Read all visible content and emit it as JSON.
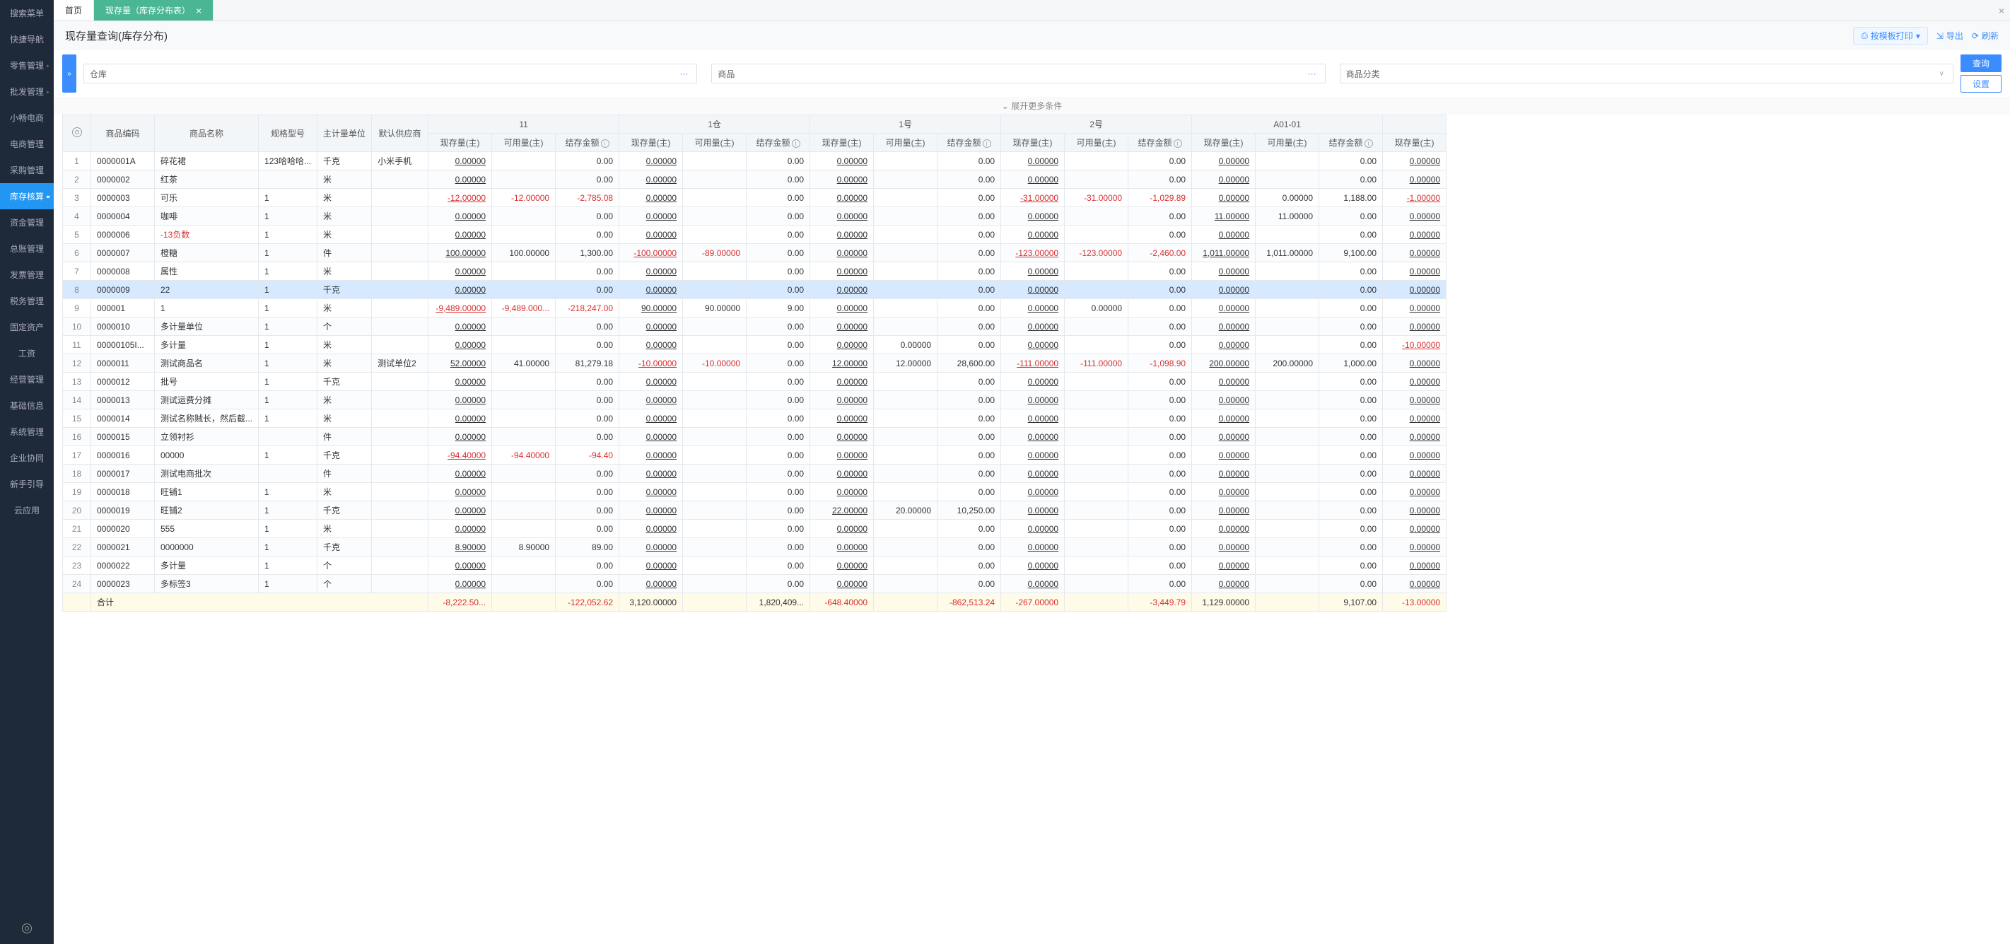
{
  "sidebar": {
    "items": [
      {
        "label": "搜索菜单",
        "caret": false
      },
      {
        "label": "快捷导航",
        "caret": false
      },
      {
        "label": "零售管理",
        "caret": true
      },
      {
        "label": "批发管理",
        "caret": true
      },
      {
        "label": "小畅电商",
        "caret": false
      },
      {
        "label": "电商管理",
        "caret": false
      },
      {
        "label": "采购管理",
        "caret": false
      },
      {
        "label": "库存核算",
        "caret": true,
        "active": true
      },
      {
        "label": "资金管理",
        "caret": false
      },
      {
        "label": "总账管理",
        "caret": false
      },
      {
        "label": "发票管理",
        "caret": false
      },
      {
        "label": "税务管理",
        "caret": false
      },
      {
        "label": "固定资产",
        "caret": false
      },
      {
        "label": "工资",
        "caret": false
      },
      {
        "label": "经营管理",
        "caret": false
      },
      {
        "label": "基础信息",
        "caret": false
      },
      {
        "label": "系统管理",
        "caret": false
      },
      {
        "label": "企业协同",
        "caret": false
      },
      {
        "label": "新手引导",
        "caret": false
      },
      {
        "label": "云应用",
        "caret": false
      }
    ]
  },
  "tabs": {
    "home": "首页",
    "active": "现存量（库存分布表）"
  },
  "page": {
    "title": "现存量查询(库存分布)",
    "print": "按模板打印",
    "export": "导出",
    "refresh": "刷新"
  },
  "filters": {
    "warehouse": "仓库",
    "product": "商品",
    "category": "商品分类",
    "more": "···",
    "query": "查询",
    "settings": "设置",
    "expand": "展开更多条件"
  },
  "table": {
    "fixed_headers": [
      "",
      "商品编码",
      "商品名称",
      "规格型号",
      "主计量单位",
      "默认供应商"
    ],
    "warehouse_groups": [
      "11",
      "1仓",
      "1号",
      "2号",
      "A01-01"
    ],
    "sub_headers": [
      "现存量(主)",
      "可用量(主)",
      "结存金额",
      "现存量(主)",
      "可用量(主)",
      "结存金额",
      "现存量(主)",
      "可用量(主)",
      "结存金额",
      "现存量(主)",
      "可用量(主)",
      "结存金额",
      "现存量(主)",
      "可用量(主)",
      "结存金额",
      "现存量(主)"
    ],
    "info_cols": [
      2,
      5,
      8,
      11,
      14
    ],
    "rows": [
      {
        "idx": 1,
        "code": "0000001A",
        "name": "碎花裙",
        "spec": "123哈哈哈...",
        "unit": "千克",
        "supp": "小米手机",
        "v": [
          "0.00000",
          "",
          "0.00",
          "0.00000",
          "",
          "0.00",
          "0.00000",
          "",
          "0.00",
          "0.00000",
          "",
          "0.00",
          "0.00000",
          "",
          "0.00",
          "0.00000"
        ]
      },
      {
        "idx": 2,
        "code": "0000002",
        "name": "红茶",
        "spec": "",
        "unit": "米",
        "supp": "",
        "v": [
          "0.00000",
          "",
          "0.00",
          "0.00000",
          "",
          "0.00",
          "0.00000",
          "",
          "0.00",
          "0.00000",
          "",
          "0.00",
          "0.00000",
          "",
          "0.00",
          "0.00000"
        ]
      },
      {
        "idx": 3,
        "code": "0000003",
        "name": "可乐",
        "spec": "1",
        "unit": "米",
        "supp": "",
        "v": [
          "-12.00000",
          "-12.00000",
          "-2,785.08",
          "0.00000",
          "",
          "0.00",
          "0.00000",
          "",
          "0.00",
          "-31.00000",
          "-31.00000",
          "-1,029.89",
          "0.00000",
          "0.00000",
          "1,188.00",
          "-1.00000"
        ]
      },
      {
        "idx": 4,
        "code": "0000004",
        "name": "咖啡",
        "spec": "1",
        "unit": "米",
        "supp": "",
        "v": [
          "0.00000",
          "",
          "0.00",
          "0.00000",
          "",
          "0.00",
          "0.00000",
          "",
          "0.00",
          "0.00000",
          "",
          "0.00",
          "11.00000",
          "11.00000",
          "0.00",
          "0.00000"
        ]
      },
      {
        "idx": 5,
        "code": "0000006",
        "name": "-13负数",
        "nameNeg": true,
        "spec": "1",
        "unit": "米",
        "supp": "",
        "v": [
          "0.00000",
          "",
          "0.00",
          "0.00000",
          "",
          "0.00",
          "0.00000",
          "",
          "0.00",
          "0.00000",
          "",
          "0.00",
          "0.00000",
          "",
          "0.00",
          "0.00000"
        ]
      },
      {
        "idx": 6,
        "code": "0000007",
        "name": "橙糖",
        "spec": "1",
        "unit": "件",
        "supp": "",
        "v": [
          "100.00000",
          "100.00000",
          "1,300.00",
          "-100.00000",
          "-89.00000",
          "0.00",
          "0.00000",
          "",
          "0.00",
          "-123.00000",
          "-123.00000",
          "-2,460.00",
          "1,011.00000",
          "1,011.00000",
          "9,100.00",
          "0.00000"
        ]
      },
      {
        "idx": 7,
        "code": "0000008",
        "name": "属性",
        "spec": "1",
        "unit": "米",
        "supp": "",
        "v": [
          "0.00000",
          "",
          "0.00",
          "0.00000",
          "",
          "0.00",
          "0.00000",
          "",
          "0.00",
          "0.00000",
          "",
          "0.00",
          "0.00000",
          "",
          "0.00",
          "0.00000"
        ]
      },
      {
        "idx": 8,
        "code": "0000009",
        "name": "22",
        "spec": "1",
        "unit": "千克",
        "supp": "",
        "hover": true,
        "v": [
          "0.00000",
          "",
          "0.00",
          "0.00000",
          "",
          "0.00",
          "0.00000",
          "",
          "0.00",
          "0.00000",
          "",
          "0.00",
          "0.00000",
          "",
          "0.00",
          "0.00000"
        ]
      },
      {
        "idx": 9,
        "code": "000001",
        "name": "1",
        "spec": "1",
        "unit": "米",
        "supp": "",
        "v": [
          "-9,489.00000",
          "-9,489.000...",
          "-218,247.00",
          "90.00000",
          "90.00000",
          "9.00",
          "0.00000",
          "",
          "0.00",
          "0.00000",
          "0.00000",
          "0.00",
          "0.00000",
          "",
          "0.00",
          "0.00000"
        ]
      },
      {
        "idx": 10,
        "code": "0000010",
        "name": "多计量单位",
        "spec": "1",
        "unit": "个",
        "supp": "",
        "v": [
          "0.00000",
          "",
          "0.00",
          "0.00000",
          "",
          "0.00",
          "0.00000",
          "",
          "0.00",
          "0.00000",
          "",
          "0.00",
          "0.00000",
          "",
          "0.00",
          "0.00000"
        ]
      },
      {
        "idx": 11,
        "code": "00000105I...",
        "name": "多计量",
        "spec": "1",
        "unit": "米",
        "supp": "",
        "v": [
          "0.00000",
          "",
          "0.00",
          "0.00000",
          "",
          "0.00",
          "0.00000",
          "0.00000",
          "0.00",
          "0.00000",
          "",
          "0.00",
          "0.00000",
          "",
          "0.00",
          "-10.00000"
        ]
      },
      {
        "idx": 12,
        "code": "0000011",
        "name": "测试商品名",
        "spec": "1",
        "unit": "米",
        "supp": "测试单位2",
        "v": [
          "52.00000",
          "41.00000",
          "81,279.18",
          "-10.00000",
          "-10.00000",
          "0.00",
          "12.00000",
          "12.00000",
          "28,600.00",
          "-111.00000",
          "-111.00000",
          "-1,098.90",
          "200.00000",
          "200.00000",
          "1,000.00",
          "0.00000"
        ]
      },
      {
        "idx": 13,
        "code": "0000012",
        "name": "批号",
        "spec": "1",
        "unit": "千克",
        "supp": "",
        "v": [
          "0.00000",
          "",
          "0.00",
          "0.00000",
          "",
          "0.00",
          "0.00000",
          "",
          "0.00",
          "0.00000",
          "",
          "0.00",
          "0.00000",
          "",
          "0.00",
          "0.00000"
        ]
      },
      {
        "idx": 14,
        "code": "0000013",
        "name": "测试运费分摊",
        "spec": "1",
        "unit": "米",
        "supp": "",
        "v": [
          "0.00000",
          "",
          "0.00",
          "0.00000",
          "",
          "0.00",
          "0.00000",
          "",
          "0.00",
          "0.00000",
          "",
          "0.00",
          "0.00000",
          "",
          "0.00",
          "0.00000"
        ]
      },
      {
        "idx": 15,
        "code": "0000014",
        "name": "测试名称贼长，然后截...",
        "spec": "1",
        "unit": "米",
        "supp": "",
        "v": [
          "0.00000",
          "",
          "0.00",
          "0.00000",
          "",
          "0.00",
          "0.00000",
          "",
          "0.00",
          "0.00000",
          "",
          "0.00",
          "0.00000",
          "",
          "0.00",
          "0.00000"
        ]
      },
      {
        "idx": 16,
        "code": "0000015",
        "name": "立领衬衫",
        "spec": "",
        "unit": "件",
        "supp": "",
        "v": [
          "0.00000",
          "",
          "0.00",
          "0.00000",
          "",
          "0.00",
          "0.00000",
          "",
          "0.00",
          "0.00000",
          "",
          "0.00",
          "0.00000",
          "",
          "0.00",
          "0.00000"
        ]
      },
      {
        "idx": 17,
        "code": "0000016",
        "name": "00000",
        "spec": "1",
        "unit": "千克",
        "supp": "",
        "v": [
          "-94.40000",
          "-94.40000",
          "-94.40",
          "0.00000",
          "",
          "0.00",
          "0.00000",
          "",
          "0.00",
          "0.00000",
          "",
          "0.00",
          "0.00000",
          "",
          "0.00",
          "0.00000"
        ]
      },
      {
        "idx": 18,
        "code": "0000017",
        "name": "测试电商批次",
        "spec": "",
        "unit": "件",
        "supp": "",
        "v": [
          "0.00000",
          "",
          "0.00",
          "0.00000",
          "",
          "0.00",
          "0.00000",
          "",
          "0.00",
          "0.00000",
          "",
          "0.00",
          "0.00000",
          "",
          "0.00",
          "0.00000"
        ]
      },
      {
        "idx": 19,
        "code": "0000018",
        "name": "旺铺1",
        "spec": "1",
        "unit": "米",
        "supp": "",
        "v": [
          "0.00000",
          "",
          "0.00",
          "0.00000",
          "",
          "0.00",
          "0.00000",
          "",
          "0.00",
          "0.00000",
          "",
          "0.00",
          "0.00000",
          "",
          "0.00",
          "0.00000"
        ]
      },
      {
        "idx": 20,
        "code": "0000019",
        "name": "旺铺2",
        "spec": "1",
        "unit": "千克",
        "supp": "",
        "v": [
          "0.00000",
          "",
          "0.00",
          "0.00000",
          "",
          "0.00",
          "22.00000",
          "20.00000",
          "10,250.00",
          "0.00000",
          "",
          "0.00",
          "0.00000",
          "",
          "0.00",
          "0.00000"
        ]
      },
      {
        "idx": 21,
        "code": "0000020",
        "name": "555",
        "spec": "1",
        "unit": "米",
        "supp": "",
        "v": [
          "0.00000",
          "",
          "0.00",
          "0.00000",
          "",
          "0.00",
          "0.00000",
          "",
          "0.00",
          "0.00000",
          "",
          "0.00",
          "0.00000",
          "",
          "0.00",
          "0.00000"
        ]
      },
      {
        "idx": 22,
        "code": "0000021",
        "name": "0000000",
        "spec": "1",
        "unit": "千克",
        "supp": "",
        "v": [
          "8.90000",
          "8.90000",
          "89.00",
          "0.00000",
          "",
          "0.00",
          "0.00000",
          "",
          "0.00",
          "0.00000",
          "",
          "0.00",
          "0.00000",
          "",
          "0.00",
          "0.00000"
        ]
      },
      {
        "idx": 23,
        "code": "0000022",
        "name": "多计量",
        "spec": "1",
        "unit": "个",
        "supp": "",
        "v": [
          "0.00000",
          "",
          "0.00",
          "0.00000",
          "",
          "0.00",
          "0.00000",
          "",
          "0.00",
          "0.00000",
          "",
          "0.00",
          "0.00000",
          "",
          "0.00",
          "0.00000"
        ]
      },
      {
        "idx": 24,
        "code": "0000023",
        "name": "多标签3",
        "spec": "1",
        "unit": "个",
        "supp": "",
        "v": [
          "0.00000",
          "",
          "0.00",
          "0.00000",
          "",
          "0.00",
          "0.00000",
          "",
          "0.00",
          "0.00000",
          "",
          "0.00",
          "0.00000",
          "",
          "0.00",
          "0.00000"
        ]
      }
    ],
    "total_label": "合计",
    "totals": [
      "-8,222.50...",
      "",
      "-122,052.62",
      "3,120.00000",
      "",
      "1,820,409...",
      "-648.40000",
      "",
      "-862,513.24",
      "-267.00000",
      "",
      "-3,449.79",
      "1,129.00000",
      "",
      "9,107.00",
      "-13.00000"
    ]
  }
}
